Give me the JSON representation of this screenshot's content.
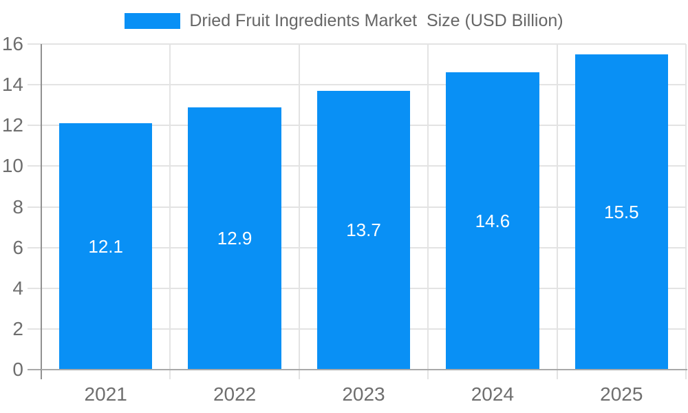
{
  "chart_data": {
    "type": "bar",
    "title": "Dried Fruit Ingredients Market  Size (USD Billion)",
    "legend_label": "Dried Fruit Ingredients Market  Size (USD Billion)",
    "legend_position": "top-center",
    "categories": [
      "2021",
      "2022",
      "2023",
      "2024",
      "2025"
    ],
    "values": [
      12.1,
      12.9,
      13.7,
      14.6,
      15.5
    ],
    "value_labels": [
      "12.1",
      "12.9",
      "13.7",
      "14.6",
      "15.5"
    ],
    "xlabel": "",
    "ylabel": "",
    "ylim": [
      0,
      16
    ],
    "ytick_step": 2,
    "ytick_labels": [
      "0",
      "2",
      "4",
      "6",
      "8",
      "10",
      "12",
      "14",
      "16"
    ],
    "grid": true
  },
  "colors": {
    "bar": "#0990f5",
    "gridline": "#e3e3e3",
    "y_axis_line": "#909090",
    "baseline": "#a9a9a9",
    "tick_text": "#6e6e6e",
    "legend_text": "#666666",
    "value_text": "#ffffff"
  }
}
